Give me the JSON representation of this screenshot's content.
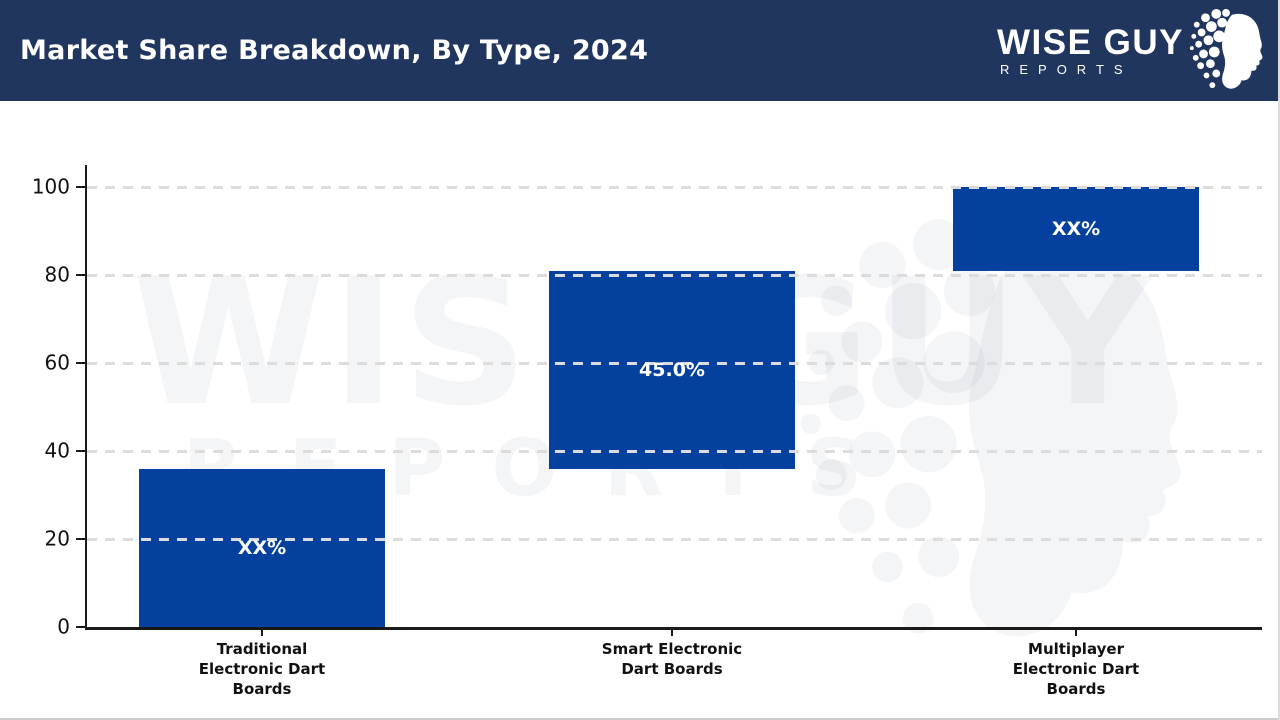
{
  "header": {
    "title": "Market Share Breakdown, By Type, 2024",
    "logo": {
      "line1": "WISE GUY",
      "line2": "REPORTS"
    }
  },
  "watermark": {
    "line1": "WISE GUY",
    "line2": "REPORTS"
  },
  "chart_data": {
    "type": "bar",
    "variant": "floating-segment-waterfall",
    "title": "Market Share Breakdown, By Type, 2024",
    "categories": [
      "Traditional\nElectronic Dart\nBoards",
      "Smart Electronic\nDart Boards",
      "Multiplayer\nElectronic Dart\nBoards"
    ],
    "segments": [
      {
        "category": "Traditional Electronic Dart Boards",
        "start": 0,
        "end": 36,
        "label": "XX%"
      },
      {
        "category": "Smart Electronic Dart Boards",
        "start": 36,
        "end": 81,
        "label": "45.0%"
      },
      {
        "category": "Multiplayer Electronic Dart Boards",
        "start": 81,
        "end": 100,
        "label": "XX%"
      }
    ],
    "xlabel": "",
    "ylabel": "",
    "ylim": [
      0,
      105
    ],
    "yticks": [
      0,
      20,
      40,
      60,
      80,
      100
    ],
    "grid": "horizontal-dashed",
    "legend": "none",
    "bar_color": "#04419E",
    "bar_label_color": "#FFFFFF",
    "grid_color": "#DCDCDC",
    "axis_color": "#1A1A1A",
    "header_bg": "#21365F",
    "header_text_color": "#FFFFFF",
    "watermark_color": "rgba(31,54,95,0.05)"
  }
}
